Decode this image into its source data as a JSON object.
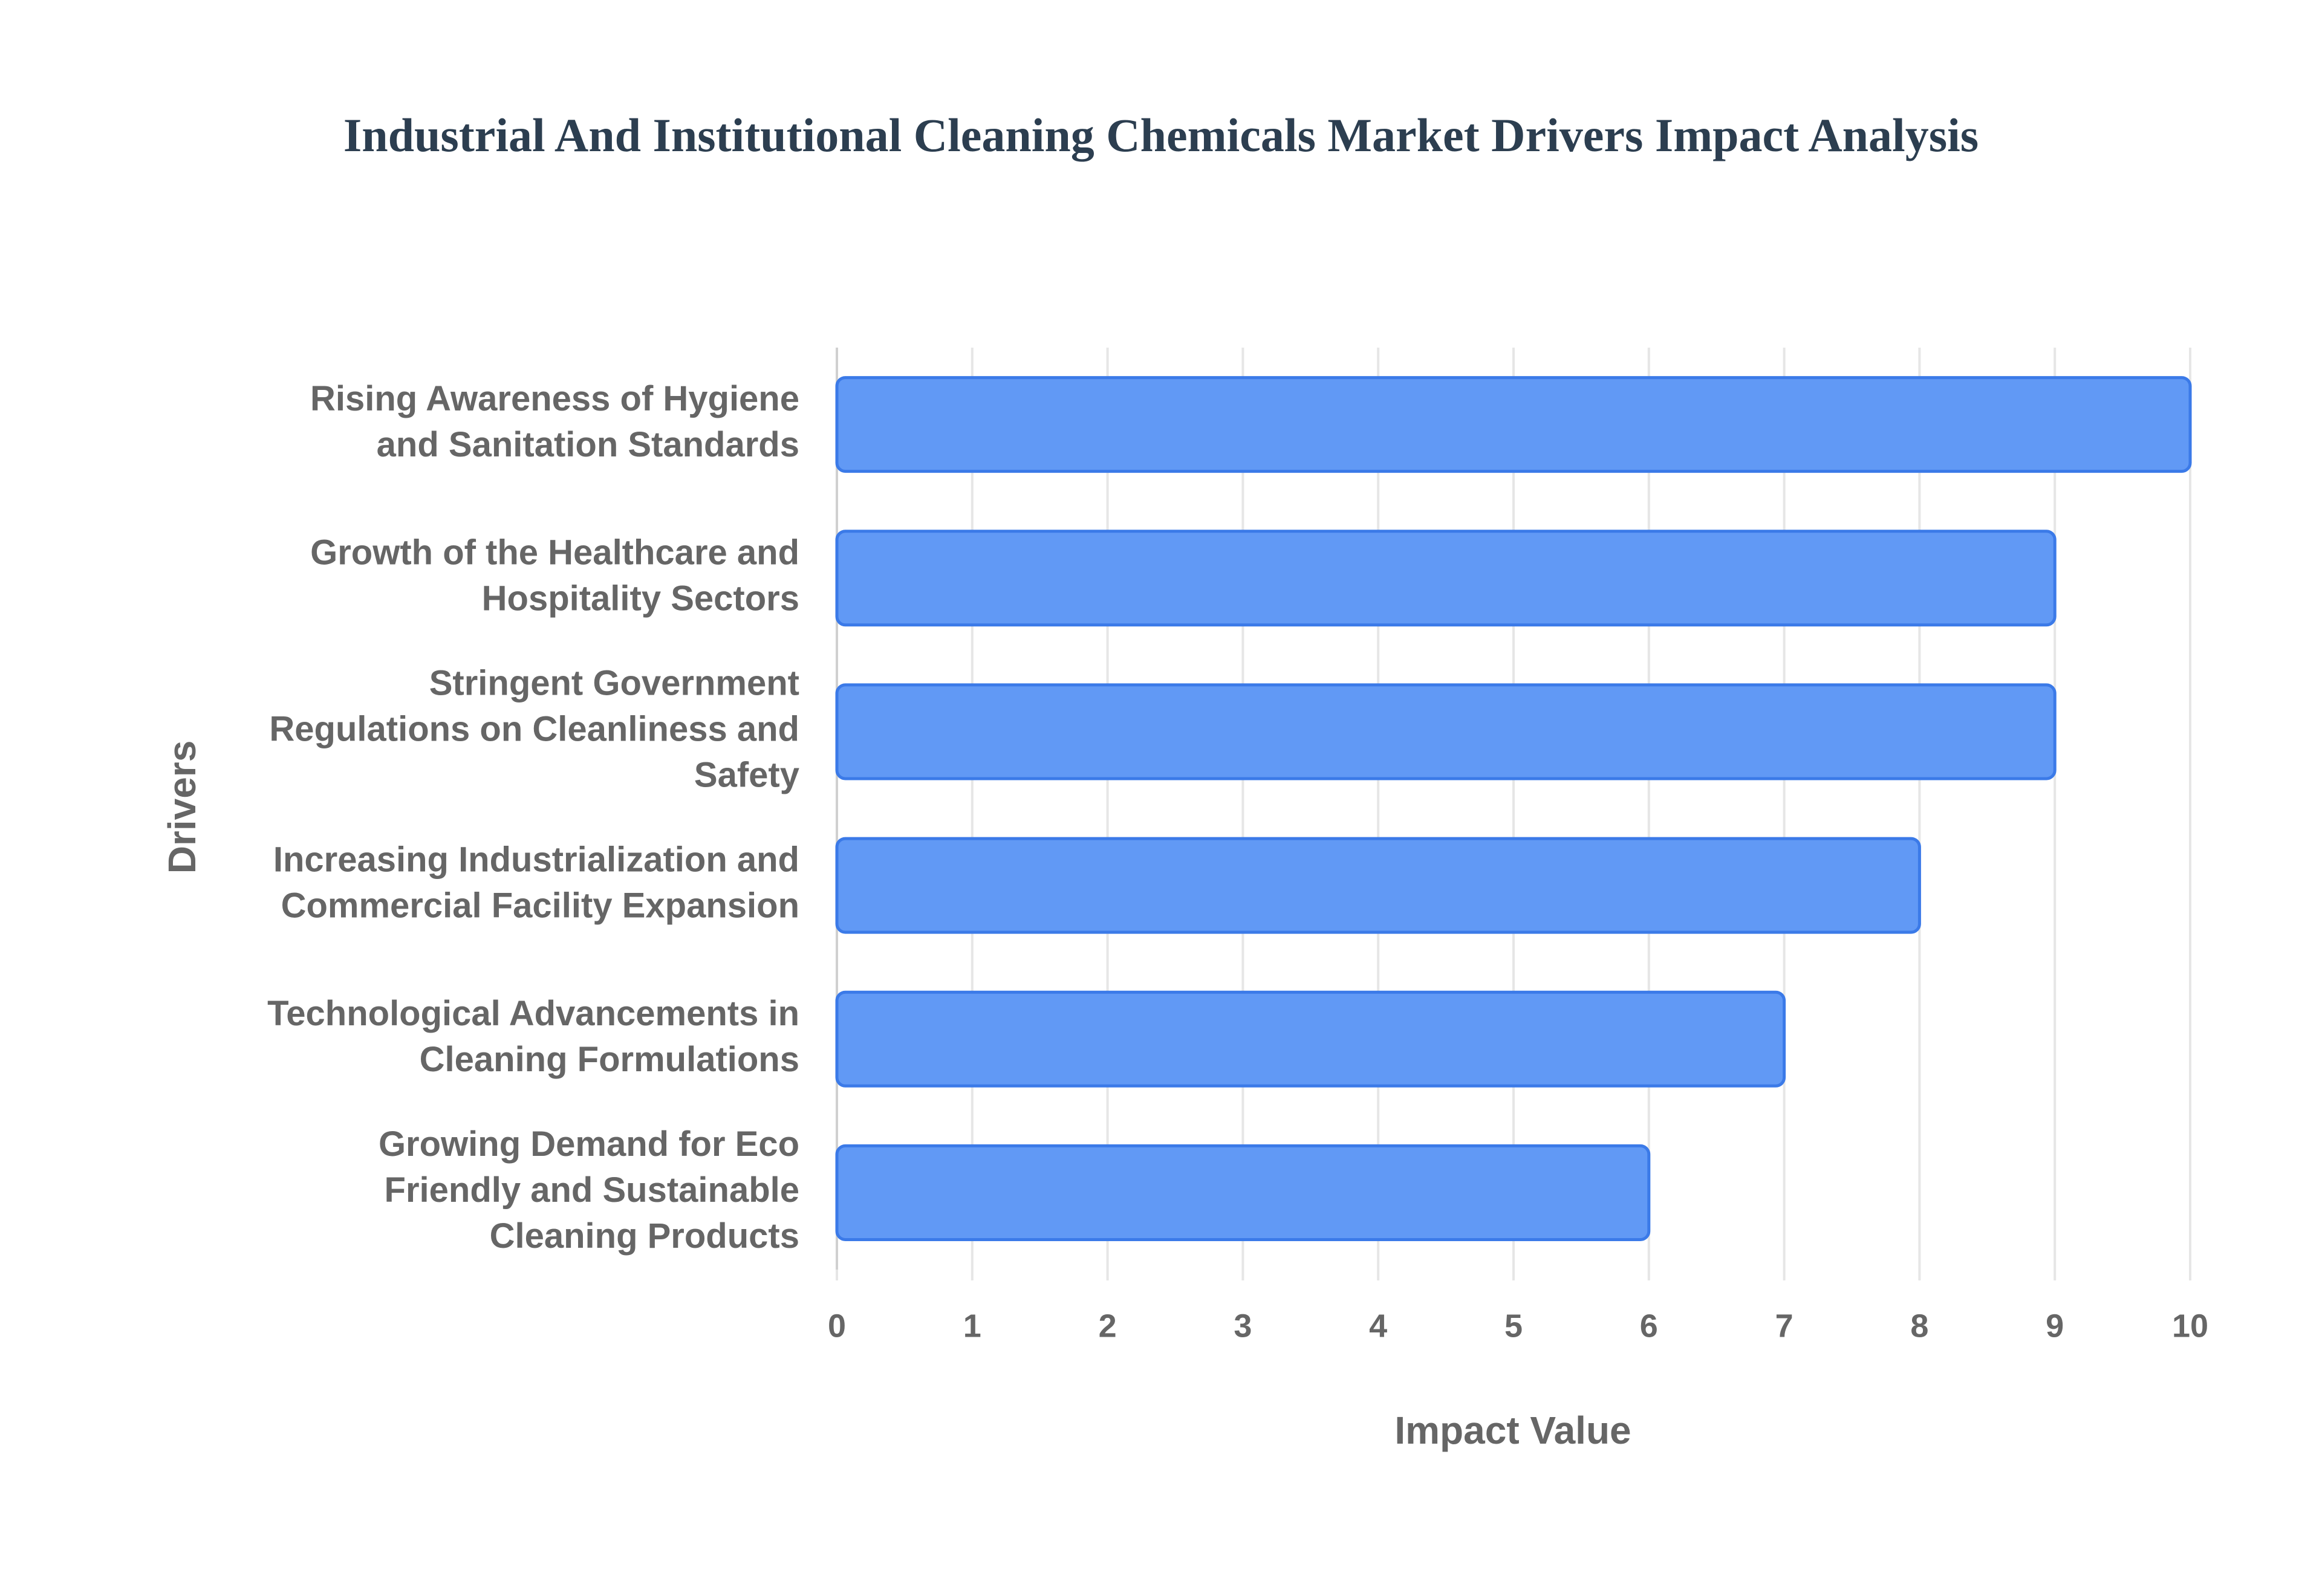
{
  "chart_data": {
    "type": "bar",
    "orientation": "horizontal",
    "title": "Industrial And Institutional Cleaning Chemicals Market Drivers Impact Analysis",
    "x_label": "Impact Value",
    "y_label": "Drivers",
    "categories": [
      "Rising Awareness of Hygiene and Sanitation Standards",
      "Growth of the Healthcare and Hospitality Sectors",
      "Stringent Government Regulations on Cleanliness and Safety",
      "Increasing Industrialization and Commercial Facility Expansion",
      "Technological Advancements in Cleaning Formulations",
      "Growing Demand for Eco Friendly and Sustainable Cleaning Products"
    ],
    "values": [
      10,
      9,
      9,
      8,
      7,
      6
    ],
    "color": "#6199f5",
    "xlim": [
      0,
      10
    ],
    "xticks": [
      0,
      1,
      2,
      3,
      4,
      5,
      6,
      7,
      8,
      9,
      10
    ],
    "grid": true
  }
}
